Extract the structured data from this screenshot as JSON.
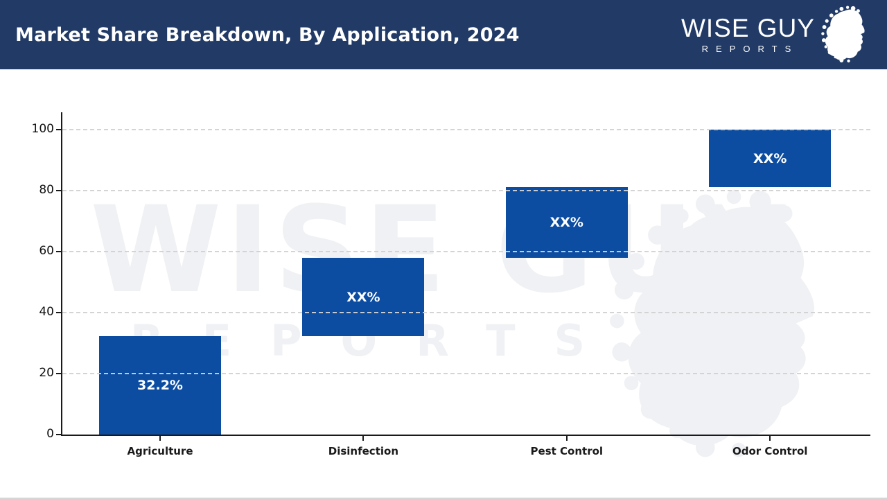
{
  "header": {
    "title": "Market Share Breakdown, By Application, 2024",
    "logo": {
      "name": "WISE GUY",
      "sub": "REPORTS"
    }
  },
  "watermark": {
    "line1": "WISE GUY",
    "line2": "REPORTS"
  },
  "chart_data": {
    "type": "bar",
    "subtype": "waterfall-stacked",
    "title": "Market Share Breakdown, By Application, 2024",
    "categories": [
      "Agriculture",
      "Disinfection",
      "Pest Control",
      "Odor Control"
    ],
    "segments": [
      {
        "category": "Agriculture",
        "start": 0,
        "end": 32.2,
        "label": "32.2%"
      },
      {
        "category": "Disinfection",
        "start": 32.2,
        "end": 57.9,
        "label": "XX%"
      },
      {
        "category": "Pest Control",
        "start": 57.9,
        "end": 81.1,
        "label": "XX%"
      },
      {
        "category": "Odor Control",
        "start": 81.1,
        "end": 100,
        "label": "XX%"
      }
    ],
    "yticks": [
      0,
      20,
      40,
      60,
      80,
      100
    ],
    "ylim": [
      0,
      105.5
    ],
    "xlabel": "",
    "ylabel": "",
    "grid": "horizontal dashed",
    "legend": "none",
    "bar_color": "#0c4da2",
    "bar_label_color": "#ffffff",
    "axis_color": "#1a1a1a",
    "header_color": "#213a66",
    "watermark_color": "#f0f1f4"
  }
}
